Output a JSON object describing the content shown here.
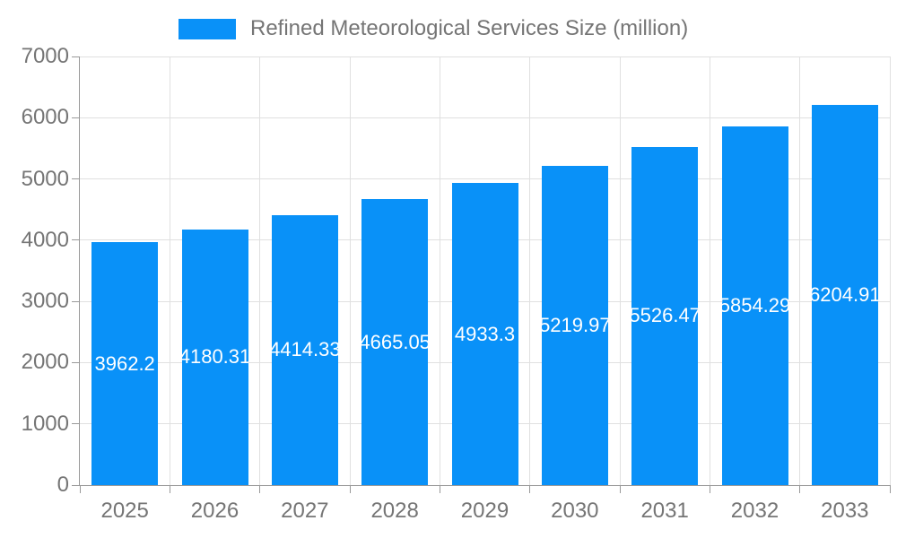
{
  "legend": {
    "label": "Refined Meteorological Services Size (million)"
  },
  "chart_data": {
    "type": "bar",
    "title": "Refined Meteorological Services Size (million)",
    "categories": [
      "2025",
      "2026",
      "2027",
      "2028",
      "2029",
      "2030",
      "2031",
      "2032",
      "2033"
    ],
    "values": [
      3962.2,
      4180.31,
      4414.33,
      4665.05,
      4933.3,
      5219.97,
      5526.47,
      5854.29,
      6204.91
    ],
    "bar_labels": [
      "3962.2",
      "4180.31",
      "4414.33",
      "4665.05",
      "4933.3",
      "5219.97",
      "5526.47",
      "5854.29",
      "6204.91"
    ],
    "xlabel": "",
    "ylabel": "",
    "ylim": [
      0,
      7000
    ],
    "ytick_interval": 1000,
    "yticks": [
      0,
      1000,
      2000,
      3000,
      4000,
      5000,
      6000,
      7000
    ],
    "grid": true,
    "legend_position": "top",
    "colors": {
      "bar": "#0991f8",
      "bar_label": "#ffffff",
      "axis_text": "#757575",
      "grid_line": "#e0e0e0",
      "axis_line": "#999999",
      "background": "#ffffff"
    }
  }
}
